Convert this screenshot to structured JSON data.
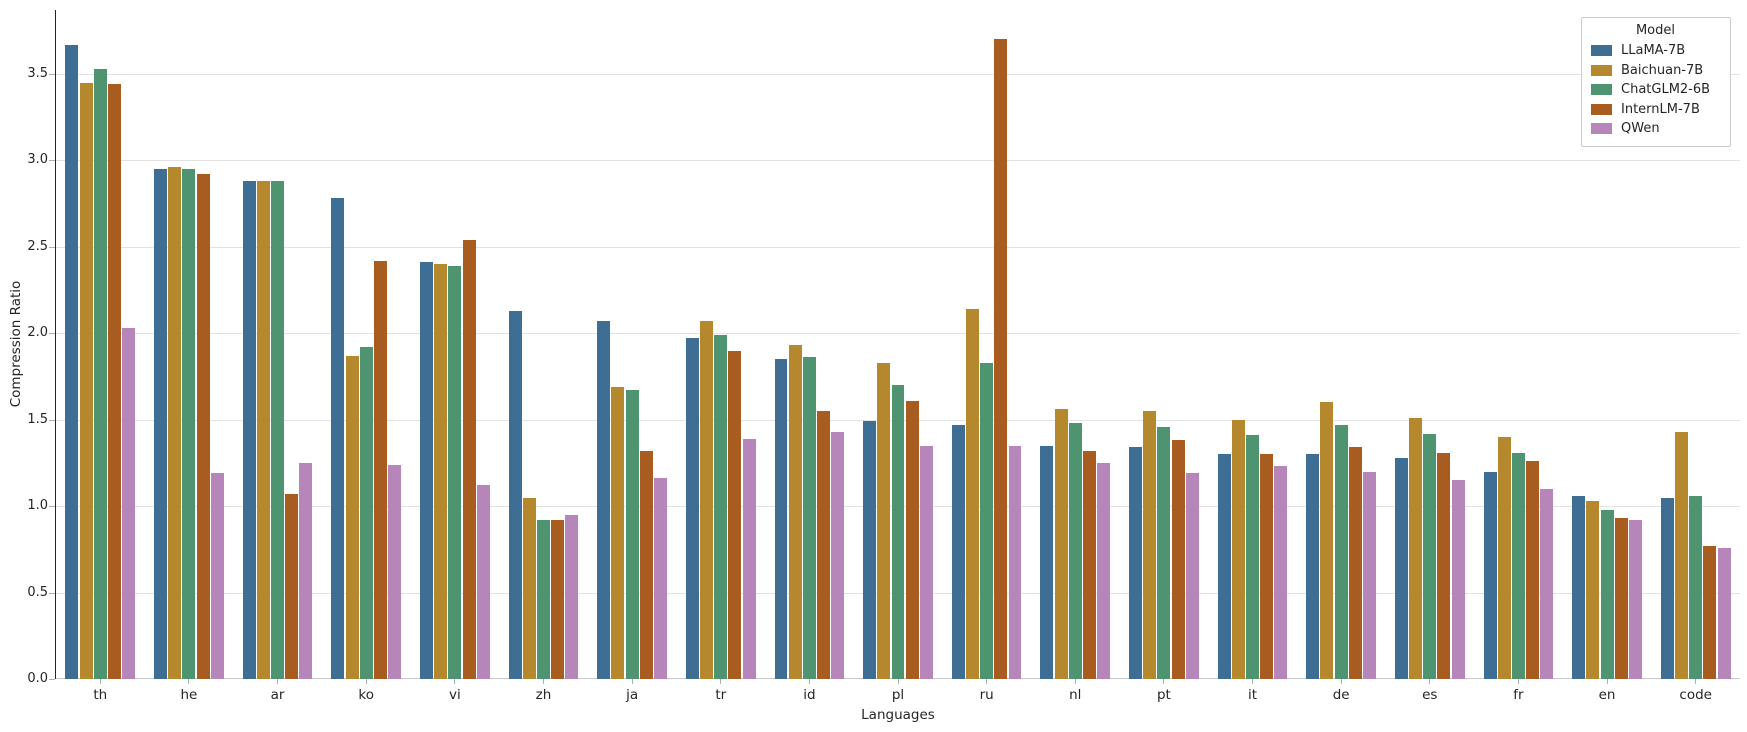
{
  "chart_data": {
    "type": "bar",
    "title": "",
    "xlabel": "Languages",
    "ylabel": "Compression Ratio",
    "legend_title": "Model",
    "legend_position": "upper right",
    "grid": true,
    "ylim": [
      0,
      3.87
    ],
    "yticks": [
      "0.0",
      "0.5",
      "1.0",
      "1.5",
      "2.0",
      "2.5",
      "3.0",
      "3.5"
    ],
    "categories": [
      "th",
      "he",
      "ar",
      "ko",
      "vi",
      "zh",
      "ja",
      "tr",
      "id",
      "pl",
      "ru",
      "nl",
      "pt",
      "it",
      "de",
      "es",
      "fr",
      "en",
      "code"
    ],
    "series": [
      {
        "name": "LLaMA-7B",
        "color": "#3E6E94",
        "values": [
          3.67,
          2.95,
          2.88,
          2.78,
          2.41,
          2.13,
          2.07,
          1.97,
          1.85,
          1.49,
          1.47,
          1.35,
          1.34,
          1.3,
          1.3,
          1.28,
          1.2,
          1.06,
          1.05
        ]
      },
      {
        "name": "Baichuan-7B",
        "color": "#B5882D",
        "values": [
          3.45,
          2.96,
          2.88,
          1.87,
          2.4,
          1.05,
          1.69,
          2.07,
          1.93,
          1.83,
          2.14,
          1.56,
          1.55,
          1.5,
          1.6,
          1.51,
          1.4,
          1.03,
          1.43
        ]
      },
      {
        "name": "ChatGLM2-6B",
        "color": "#4E9470",
        "values": [
          3.53,
          2.95,
          2.88,
          1.92,
          2.39,
          0.92,
          1.67,
          1.99,
          1.86,
          1.7,
          1.83,
          1.48,
          1.46,
          1.41,
          1.47,
          1.42,
          1.31,
          0.98,
          1.06
        ]
      },
      {
        "name": "InternLM-7B",
        "color": "#A95C1F",
        "values": [
          3.44,
          2.92,
          1.07,
          2.42,
          2.54,
          0.92,
          1.32,
          1.9,
          1.55,
          1.61,
          3.7,
          1.32,
          1.38,
          1.3,
          1.34,
          1.31,
          1.26,
          0.93,
          0.77
        ]
      },
      {
        "name": "QWen",
        "color": "#B685BA",
        "values": [
          2.03,
          1.19,
          1.25,
          1.24,
          1.12,
          0.95,
          1.16,
          1.39,
          1.43,
          1.35,
          1.35,
          1.25,
          1.19,
          1.23,
          1.2,
          1.15,
          1.1,
          0.92,
          0.76
        ]
      }
    ],
    "colors": {
      "background": "#FFFFFF",
      "gridline": "#E2E2E2",
      "spine": "#262626",
      "axis_text": "#262626",
      "legend_border": "#CCCCCC"
    }
  }
}
